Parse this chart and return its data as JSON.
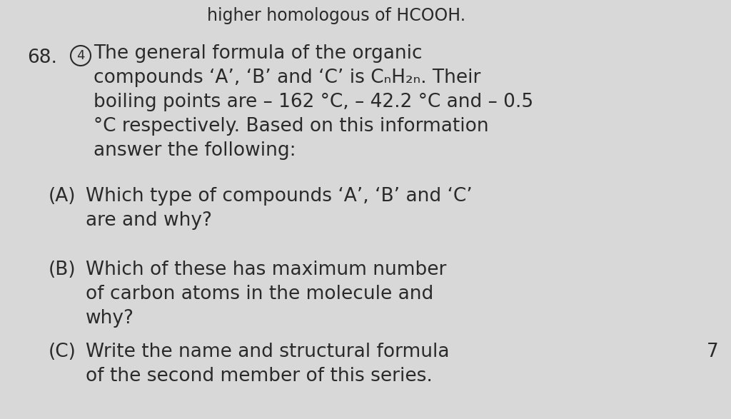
{
  "background_color": "#d8d8d8",
  "top_text": "higher homologous of HCOOH.",
  "question_number": "68.",
  "circle_label": "4",
  "intro_line1": "The general formula of the organic",
  "intro_line2": "compounds ‘A’, ‘B’ and ‘C’ is CₙH₂ₙ. Their",
  "intro_line3": "boiling points are – 162 °C, – 42.2 °C and – 0.5",
  "intro_line4": "°C respectively. Based on this information",
  "intro_line5": "answer the following:",
  "subq_A_label": "(A)",
  "subq_A_line1": "Which type of compounds ‘A’, ‘B’ and ‘C’",
  "subq_A_line2": "are and why?",
  "subq_B_label": "(B)",
  "subq_B_line1": "Which of these has maximum number",
  "subq_B_line2": "of carbon atoms in the molecule and",
  "subq_B_line3": "why?",
  "subq_C_label": "(C)",
  "subq_C_line1": "Write the name and structural formula",
  "subq_C_line2": "of the second member of this series.",
  "side_number": "7",
  "font_size_top": 17,
  "font_size_main": 19,
  "text_color": "#2a2a2a",
  "font_family": "DejaVu Sans"
}
